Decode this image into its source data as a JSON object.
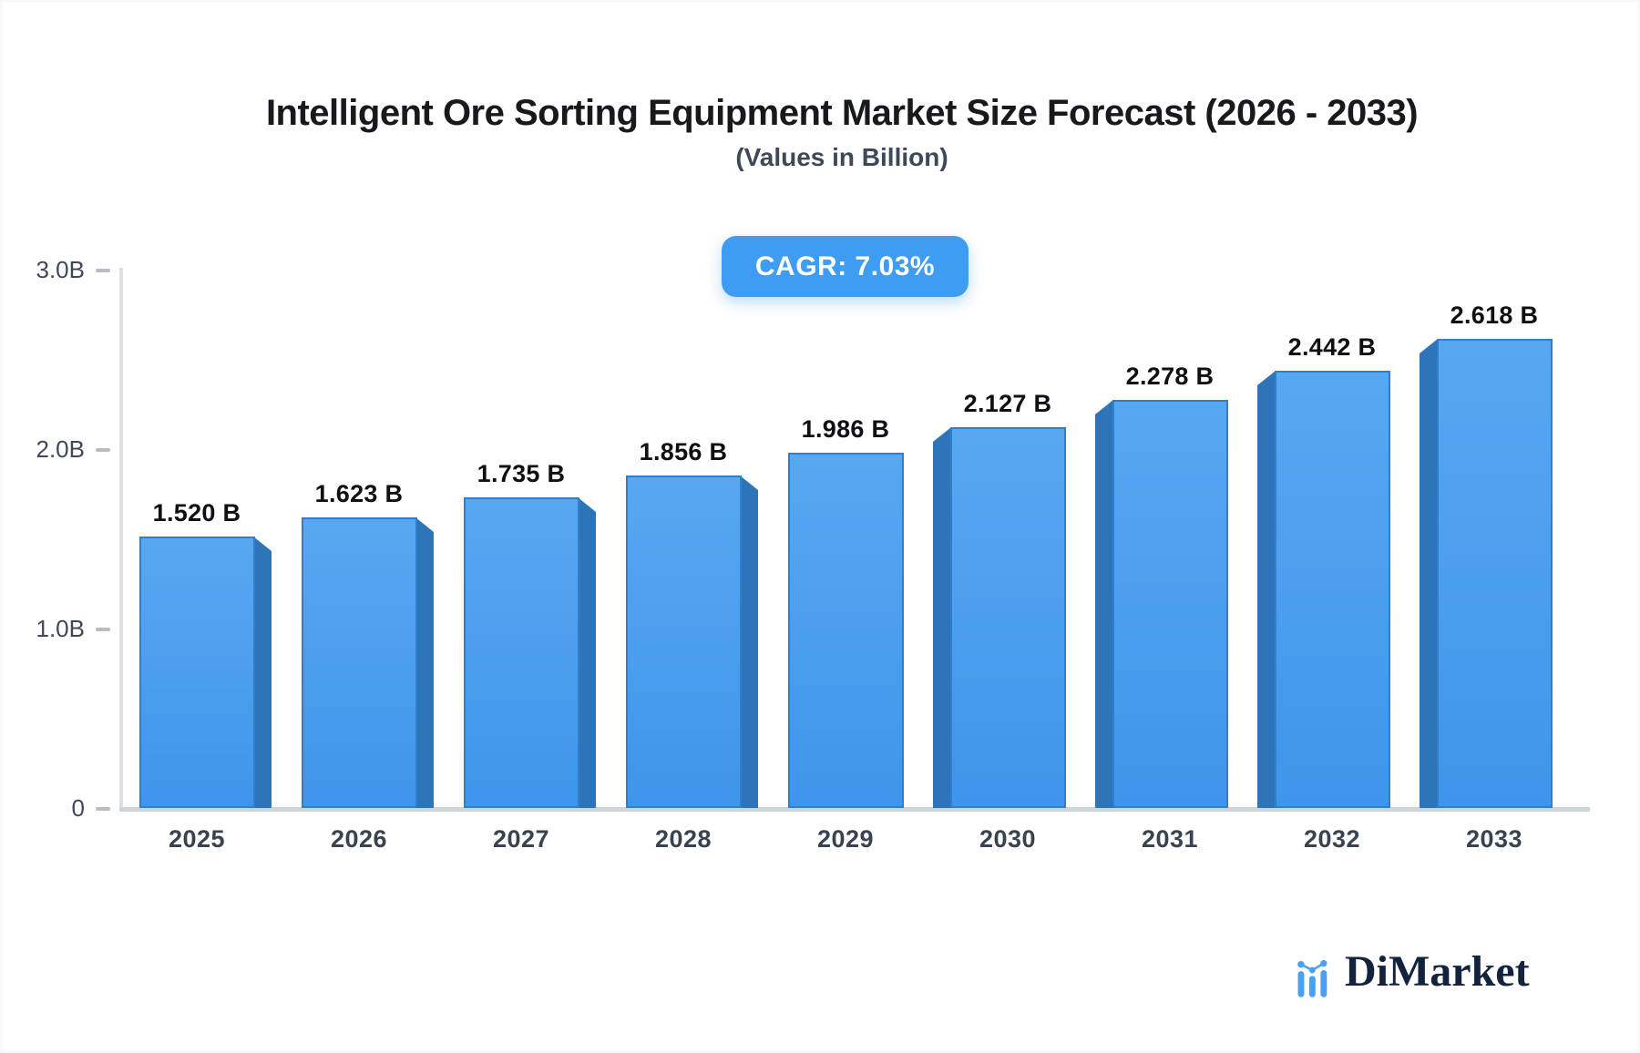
{
  "page": {
    "background": "#f7f9fb",
    "card_background": "#ffffff"
  },
  "header": {
    "title": "Intelligent Ore Sorting Equipment Market Size Forecast (2026 - 2033)",
    "subtitle": "(Values in Billion)"
  },
  "badge": {
    "label": "CAGR: 7.03%",
    "background": "#3f9cf3",
    "text_color": "#ffffff"
  },
  "chart_data": {
    "type": "bar",
    "title": "Intelligent Ore Sorting Equipment Market Size Forecast (2026 - 2033)",
    "subtitle": "(Values in Billion)",
    "categories": [
      "2025",
      "2026",
      "2027",
      "2028",
      "2029",
      "2030",
      "2031",
      "2032",
      "2033"
    ],
    "values": [
      1.52,
      1.623,
      1.735,
      1.856,
      1.986,
      2.127,
      2.278,
      2.442,
      2.618
    ],
    "value_labels": [
      "1.520 B",
      "1.623 B",
      "1.735 B",
      "1.856 B",
      "1.986 B",
      "2.127 B",
      "2.278 B",
      "2.442 B",
      "2.618 B"
    ],
    "unit": "Billion",
    "cagr": "7.03%",
    "xlabel": "",
    "ylabel": "",
    "ylim": [
      0,
      3.0
    ],
    "yticks": [
      {
        "label": "0",
        "value": 0
      },
      {
        "label": "1.0B",
        "value": 1.0
      },
      {
        "label": "2.0B",
        "value": 2.0
      },
      {
        "label": "3.0B",
        "value": 3.0
      }
    ],
    "grid": false,
    "legend": "none",
    "bar_colors": {
      "front_top": "#57a8f1",
      "front_bottom": "#3f95ea",
      "border": "#2e7fcd",
      "side": "#2e74b8"
    }
  },
  "logo": {
    "text": "DiMarket",
    "icon": "bar-chart-logo-icon",
    "icon_color": "#4aa0f4",
    "text_color": "#13233d"
  }
}
